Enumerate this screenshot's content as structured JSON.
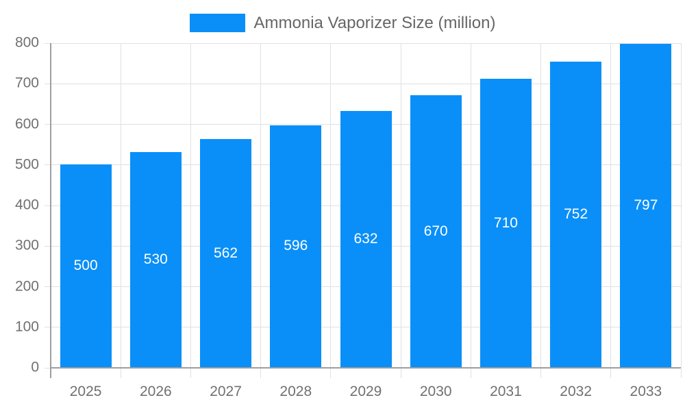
{
  "chart_data": {
    "type": "bar",
    "title": "Ammonia Vaporizer Size (million)",
    "legend_entries": [
      "Ammonia Vaporizer Size (million)"
    ],
    "legend_position": "top-center",
    "categories": [
      "2025",
      "2026",
      "2027",
      "2028",
      "2029",
      "2030",
      "2031",
      "2032",
      "2033"
    ],
    "series": [
      {
        "name": "Ammonia Vaporizer Size (million)",
        "values": [
          500,
          530,
          562,
          596,
          632,
          670,
          710,
          752,
          797
        ]
      }
    ],
    "value_labels_shown": true,
    "value_label_position": "inside-center",
    "xlabel": "",
    "ylabel": "",
    "ylim": [
      0,
      800
    ],
    "ytick_step": 100,
    "grid": true,
    "colors": {
      "bar": "#0A8FF8",
      "grid_line": "#E0E0E0",
      "axis_line": "#9E9E9E",
      "axis_label": "#707070",
      "legend_text": "#666666",
      "value_label": "#FFFFFF",
      "background": "#FFFFFF"
    }
  }
}
